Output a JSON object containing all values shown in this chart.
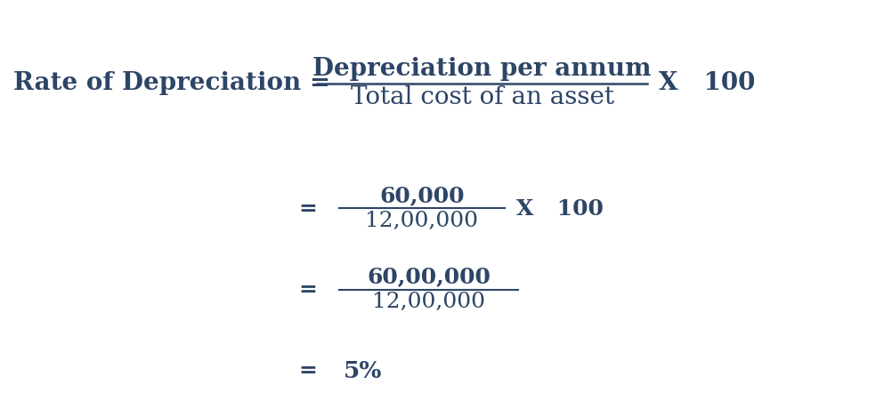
{
  "bg_color": "#ffffff",
  "text_color": "#2d4566",
  "font_family": "DejaVu Serif",
  "line1_label": "Rate of Depreciation =",
  "line1_numerator": "Depreciation per annum",
  "line1_denominator": "Total cost of an asset",
  "line1_x100": "X   100",
  "line2_eq": "=",
  "line2_numerator": "60,000",
  "line2_denominator": "12,00,000",
  "line2_x100": "X   100",
  "line3_eq": "=",
  "line3_numerator": "60,00,000",
  "line3_denominator": "12,00,000",
  "line4_eq": "=",
  "line4_result": "5%",
  "fs_main": 20,
  "fs_calc": 18
}
